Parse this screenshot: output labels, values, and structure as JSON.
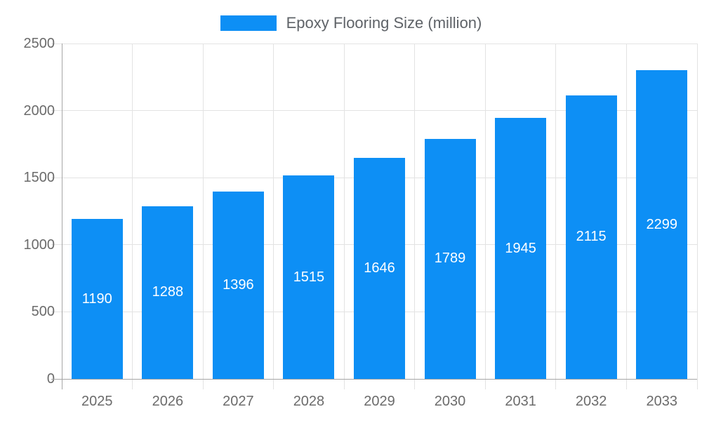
{
  "legend": {
    "label": "Epoxy Flooring Size (million)"
  },
  "chart_data": {
    "type": "bar",
    "title": "Epoxy Flooring Size (million)",
    "categories": [
      "2025",
      "2026",
      "2027",
      "2028",
      "2029",
      "2030",
      "2031",
      "2032",
      "2033"
    ],
    "series": [
      {
        "name": "Epoxy Flooring Size (million)",
        "values": [
          1190,
          1288,
          1396,
          1515,
          1646,
          1789,
          1945,
          2115,
          2299
        ]
      }
    ],
    "xlabel": "",
    "ylabel": "",
    "ylim": [
      0,
      2500
    ],
    "y_ticks": [
      0,
      500,
      1000,
      1500,
      2000,
      2500
    ],
    "grid": true,
    "legend_position": "top",
    "bar_value_labels": "inside-center"
  },
  "colors": {
    "bar": "#0d8ff5",
    "bar_label": "#ffffff",
    "axis_text": "#6b6b6b",
    "legend_text": "#5f6368",
    "grid": "#e3e3e3",
    "axis_line": "#a6a6a6"
  }
}
